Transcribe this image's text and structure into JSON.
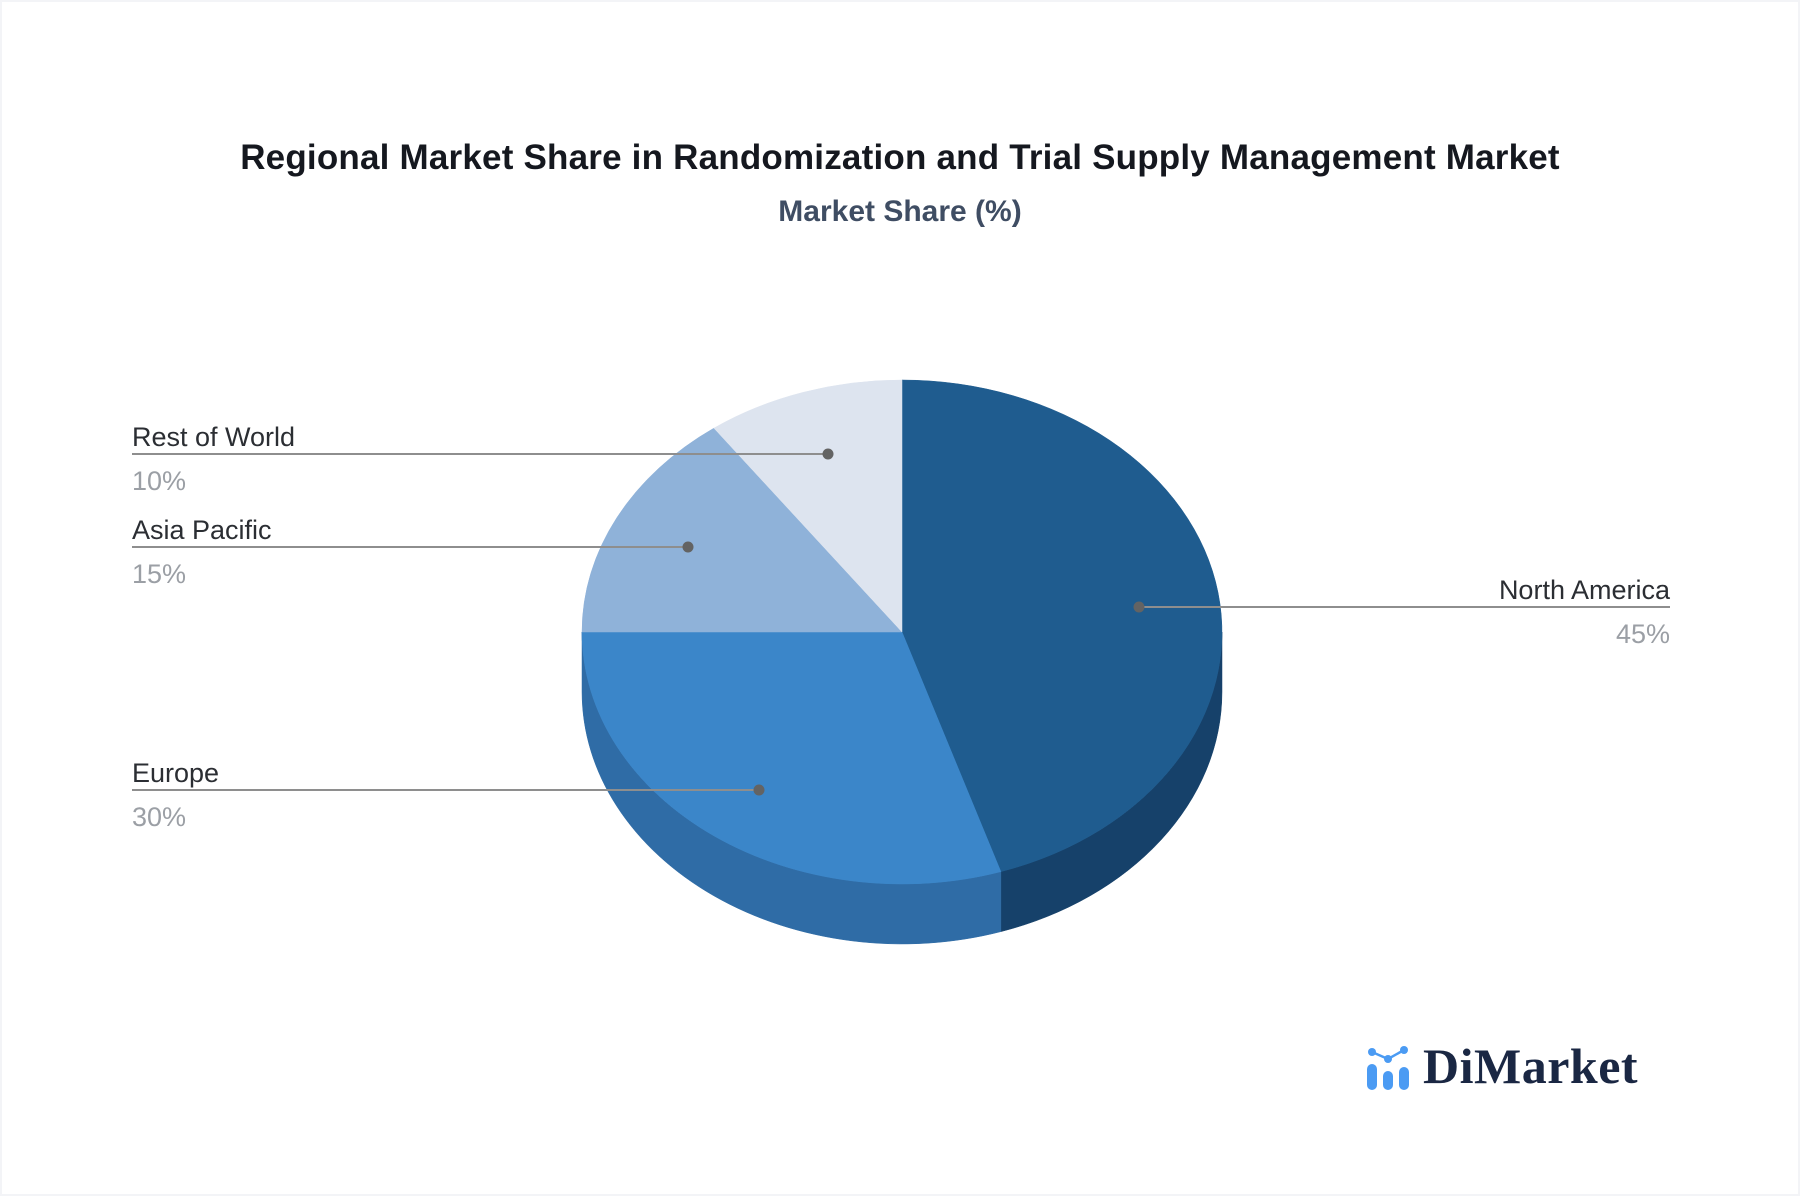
{
  "chart_data": {
    "type": "pie",
    "title": "Regional Market Share in Randomization and Trial Supply Management Market",
    "subtitle": "Market Share (%)",
    "unit": "%",
    "style": "3d",
    "start_angle_deg": 0,
    "direction": "clockwise",
    "legend_position": "callout-labels",
    "slices": [
      {
        "label": "North America",
        "value": 45,
        "display": "45%",
        "color": "#1f5c8f",
        "side_color": "#16416a"
      },
      {
        "label": "Europe",
        "value": 30,
        "display": "30%",
        "color": "#3b86c9",
        "side_color": "#2f6ca6"
      },
      {
        "label": "Asia Pacific",
        "value": 15,
        "display": "15%",
        "color": "#8fb2d9",
        "side_color": "#7b9cc4"
      },
      {
        "label": "Rest of World",
        "value": 10,
        "display": "10%",
        "color": "#dde4ef",
        "side_color": "#c2cbdb"
      }
    ]
  },
  "palette": {
    "title_color": "#15181f",
    "subtitle_color": "#3f4d63",
    "label_color": "#2b2e33",
    "percent_color": "#9b9fa5",
    "leader_line_color": "#8e8e8e",
    "leader_dot_color": "#636363"
  },
  "logo": {
    "text": "DiMarket",
    "icon": "bar-chart-icon",
    "accent_color": "#4b9bf3",
    "text_color": "#1a2743"
  }
}
